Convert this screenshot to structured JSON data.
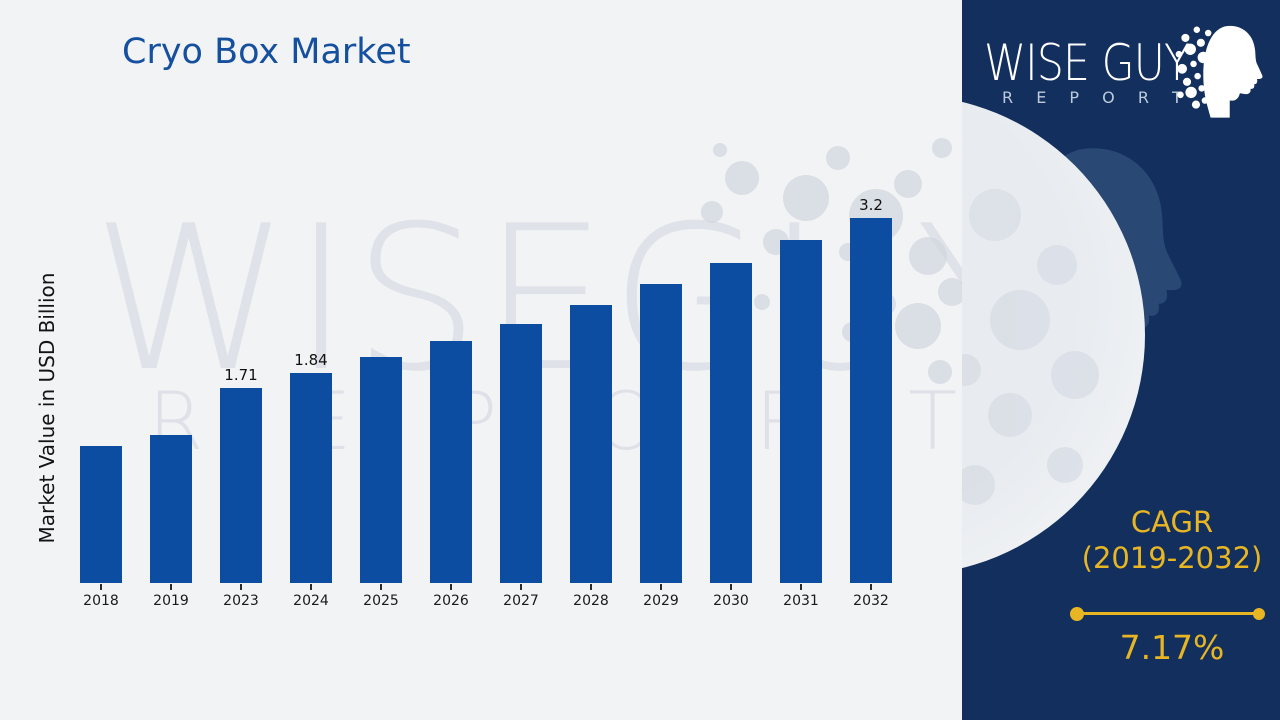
{
  "chart": {
    "title": "Cryo Box Market",
    "ylabel": "Market Value in USD Billion",
    "title_color": "#15509f",
    "background_color": "#f2f3f5"
  },
  "chart_data": {
    "type": "bar",
    "title": "Cryo Box Market",
    "xlabel": "",
    "ylabel": "Market Value in USD Billion",
    "unit": "USD Billion",
    "categories": [
      "2018",
      "2019",
      "2023",
      "2024",
      "2025",
      "2026",
      "2027",
      "2028",
      "2029",
      "2030",
      "2031",
      "2032"
    ],
    "values": [
      1.2,
      1.3,
      1.71,
      1.84,
      1.98,
      2.12,
      2.27,
      2.43,
      2.62,
      2.8,
      3.0,
      3.2
    ],
    "data_labels": {
      "2023": "1.71",
      "2024": "1.84",
      "2032": "3.2"
    },
    "bar_color": "#0c4da2",
    "ylim": [
      0,
      3.5
    ],
    "grid": false,
    "legend": null
  },
  "watermark": {
    "line1": "WISEGUY",
    "line2": "R E P O R T S"
  },
  "sidebar": {
    "logo_line1": "WISE GUY",
    "logo_line2": "R E P O R T S",
    "cagr_label": "CAGR",
    "cagr_range": "(2019-2032)",
    "cagr_value": "7.17%",
    "accent_color": "#e8b623",
    "bg_color": "#132f5e"
  }
}
